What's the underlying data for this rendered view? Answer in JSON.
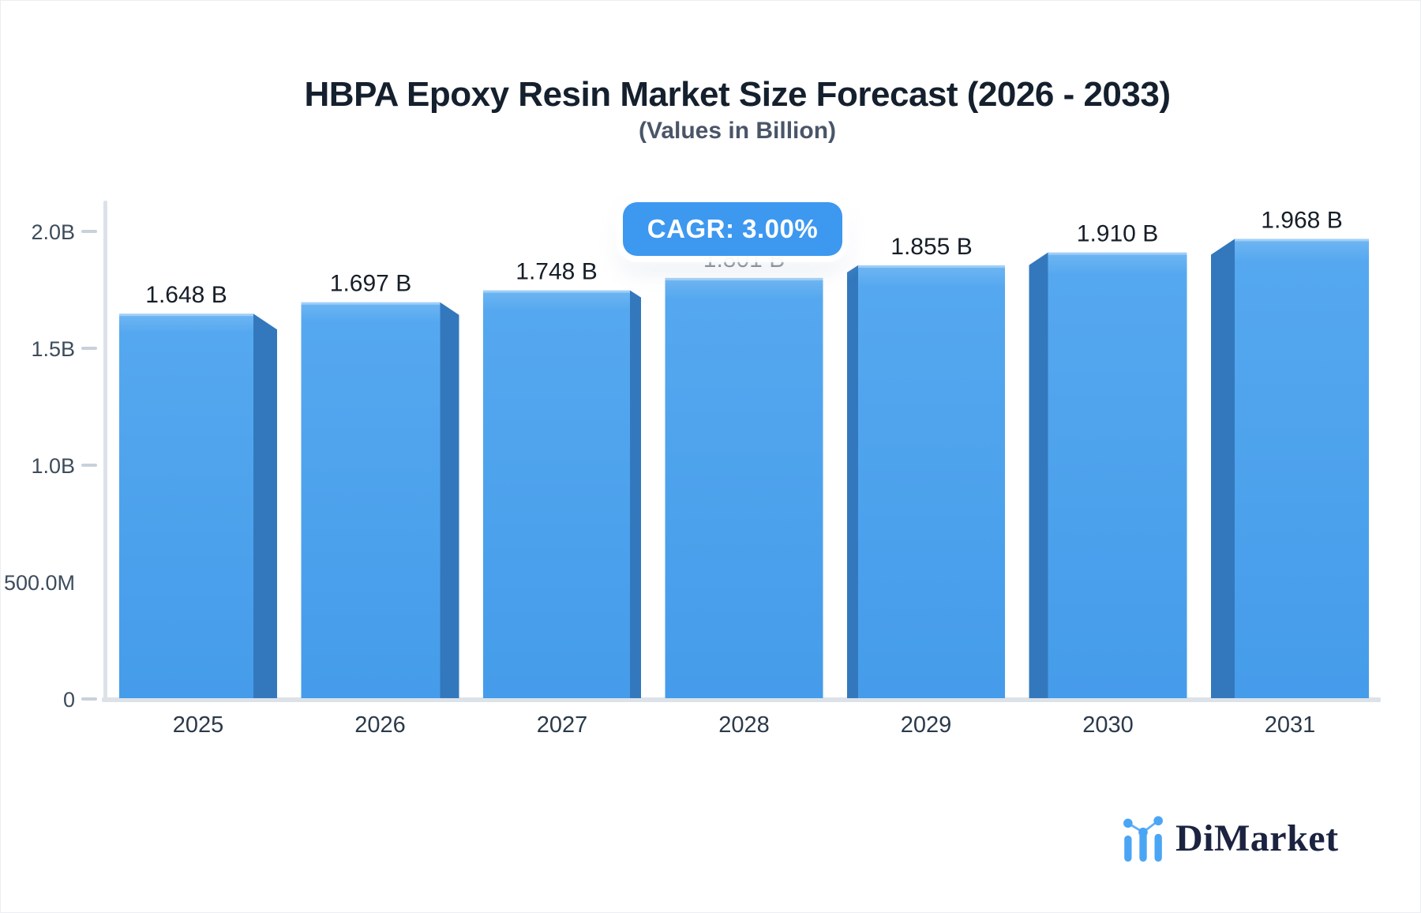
{
  "chart_data": {
    "type": "bar",
    "title": "HBPA Epoxy Resin Market Size Forecast (2026 - 2033)",
    "subtitle": "(Values in Billion)",
    "unit": "Billion",
    "categories": [
      "2025",
      "2026",
      "2027",
      "2028",
      "2029",
      "2030",
      "2031"
    ],
    "values": [
      1.648,
      1.697,
      1.748,
      1.801,
      1.855,
      1.91,
      1.968
    ],
    "value_labels": [
      "1.648 B",
      "1.697 B",
      "1.748 B",
      "1.801 B",
      "1.855 B",
      "1.910 B",
      "1.968 B"
    ],
    "y_ticks": [
      {
        "label": "2.0B",
        "value": 2.0,
        "dash": true
      },
      {
        "label": "1.5B",
        "value": 1.5,
        "dash": true
      },
      {
        "label": "1.0B",
        "value": 1.0,
        "dash": true
      },
      {
        "label": "500.0M",
        "value": 0.5,
        "dash": false
      },
      {
        "label": "0",
        "value": 0,
        "dash": true
      }
    ],
    "ylim": [
      0,
      2.0
    ],
    "grid": false,
    "legend": "none",
    "annotation": {
      "label": "CAGR: 3.00%"
    },
    "colors": {
      "bar_face_top": "#6fb6f3",
      "bar_face_main": "#55a8ef",
      "bar_face_bottom": "#459cea",
      "bar_side": "#3378bd",
      "badge_bg": "#3d98f0",
      "badge_text": "#ffffff",
      "axis_line": "#dde2e8",
      "tick_dash": "#c9d1da",
      "title_text": "#15202e",
      "subtitle_text": "#4a5568",
      "value_label_text": "#161e28",
      "axis_label_text": "#3d4c5c",
      "category_label_text": "#2b3a4a"
    }
  },
  "branding": {
    "name": "DiMarket",
    "icon": "dimarket-chart-logo-icon",
    "icon_color": "#4ba5f5",
    "text_color": "#1b2340"
  }
}
